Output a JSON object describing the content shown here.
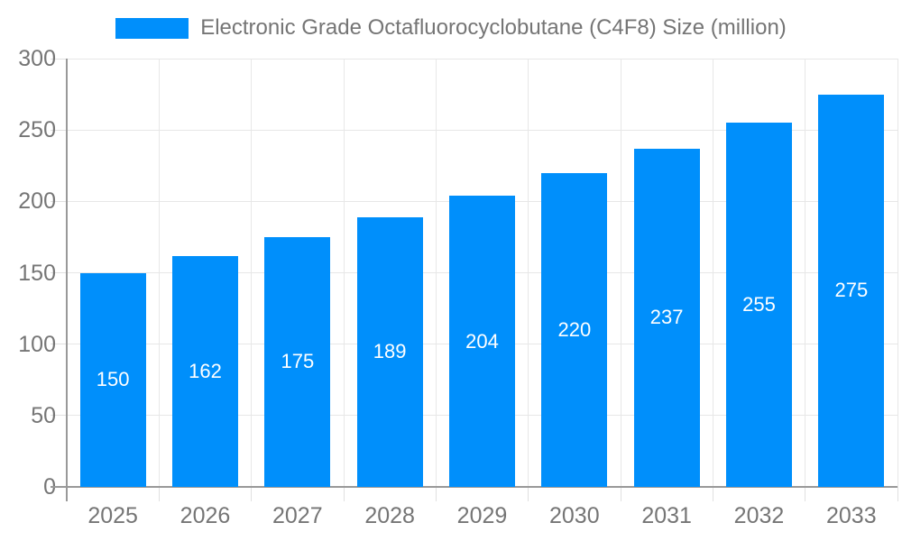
{
  "legend": {
    "label": "Electronic Grade Octafluorocyclobutane (C4F8) Size (million)"
  },
  "chart_data": {
    "type": "bar",
    "title": "Electronic Grade Octafluorocyclobutane (C4F8) Size (million)",
    "categories": [
      "2025",
      "2026",
      "2027",
      "2028",
      "2029",
      "2030",
      "2031",
      "2032",
      "2033"
    ],
    "series": [
      {
        "name": "Electronic Grade Octafluorocyclobutane (C4F8) Size (million)",
        "values": [
          150,
          162,
          175,
          189,
          204,
          220,
          237,
          255,
          275
        ]
      }
    ],
    "value_labels_shown": true,
    "xlabel": "",
    "ylabel": "",
    "ylim": [
      0,
      300
    ],
    "yticks": [
      0,
      50,
      100,
      150,
      200,
      250,
      300
    ],
    "grid": true,
    "legend_position": "top",
    "colors": {
      "bar": "#008FFB",
      "value_label": "#ffffff",
      "axis_text": "#757575",
      "grid_line": "#e7e7e7",
      "axis_line": "#999999",
      "tick_line": "#e0e0e0"
    }
  }
}
